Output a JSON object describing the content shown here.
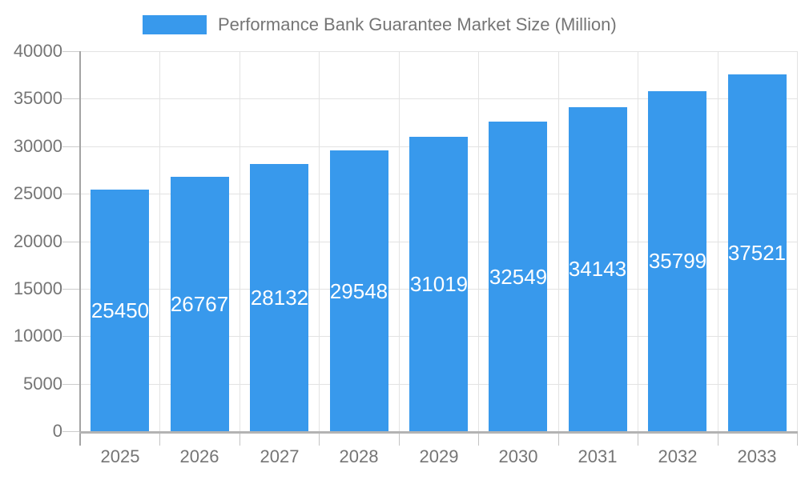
{
  "legend": {
    "label": "Performance Bank Guarantee Market Size (Million)"
  },
  "colors": {
    "bar": "#3899EC",
    "axis_text": "#757575",
    "bar_label_text": "#ffffff",
    "gridline": "#e3e3e3",
    "axis_line": "#b3b3b3",
    "background": "#ffffff"
  },
  "chart_data": {
    "type": "bar",
    "title": "Performance Bank Guarantee Market Size (Million)",
    "categories": [
      "2025",
      "2026",
      "2027",
      "2028",
      "2029",
      "2030",
      "2031",
      "2032",
      "2033"
    ],
    "values": [
      25450,
      26767,
      28132,
      29548,
      31019,
      32549,
      34143,
      35799,
      37521
    ],
    "xlabel": "",
    "ylabel": "",
    "ylim": [
      0,
      40000
    ],
    "ytick_step": 5000,
    "ytick_labels": [
      "0",
      "5000",
      "10000",
      "15000",
      "20000",
      "25000",
      "30000",
      "35000",
      "40000"
    ],
    "grid": true,
    "legend_position": "top",
    "bar_value_labels": "inside-center"
  }
}
